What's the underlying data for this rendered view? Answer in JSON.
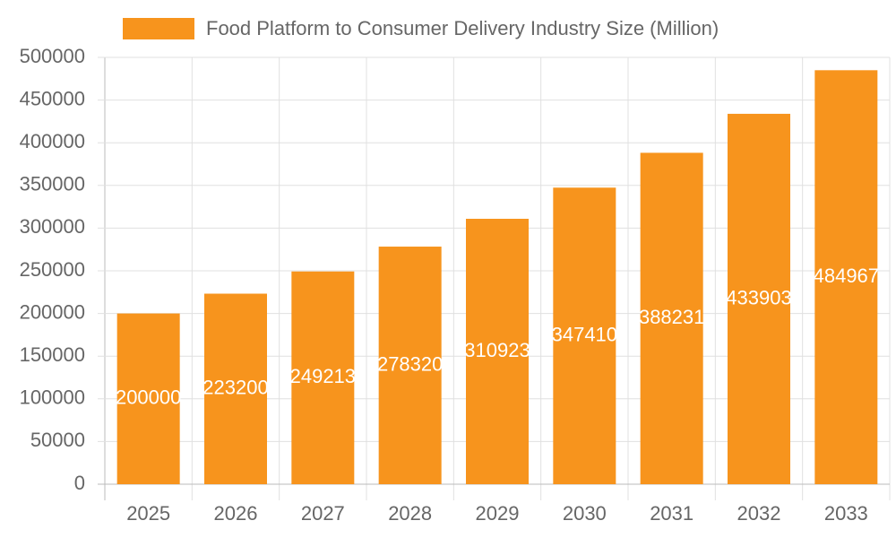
{
  "chart_data": {
    "type": "bar",
    "categories": [
      "2025",
      "2026",
      "2027",
      "2028",
      "2029",
      "2030",
      "2031",
      "2032",
      "2033"
    ],
    "series": [
      {
        "name": "Food Platform to Consumer Delivery Industry Size (Million)",
        "color": "#f7941d",
        "values": [
          200000,
          223200,
          249213,
          278320,
          310923,
          347410,
          388231,
          433903,
          484967
        ]
      }
    ],
    "ylim": [
      0,
      500000
    ],
    "yticks": [
      0,
      50000,
      100000,
      150000,
      200000,
      250000,
      300000,
      350000,
      400000,
      450000,
      500000
    ],
    "grid": true,
    "legend": "top"
  }
}
